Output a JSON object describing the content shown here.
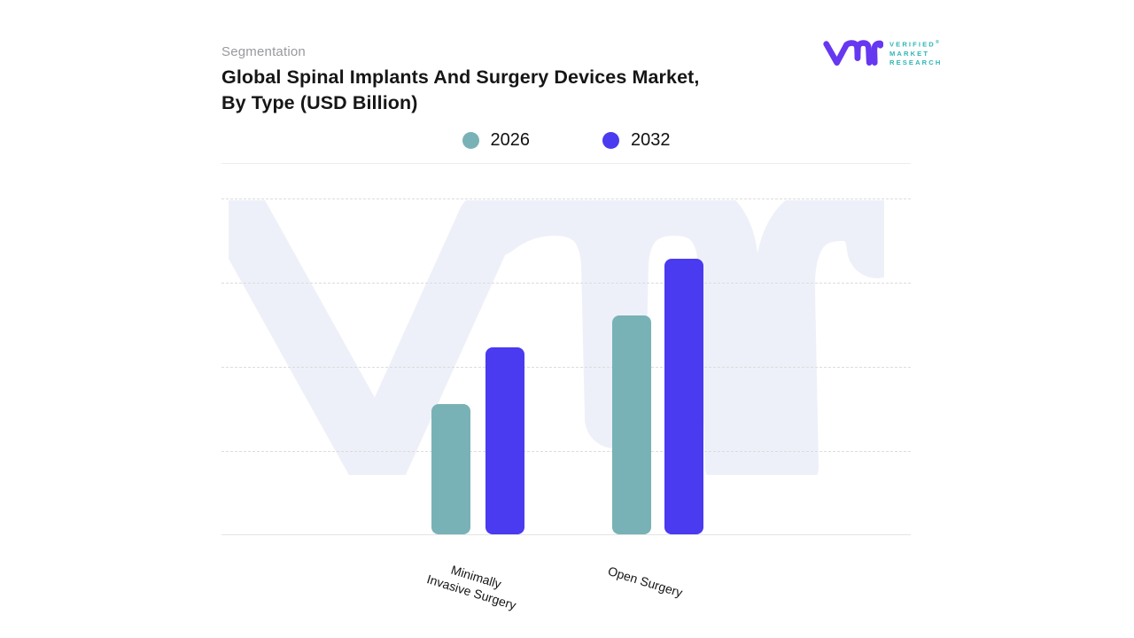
{
  "header": {
    "eyebrow": "Segmentation",
    "title": "Global Spinal Implants And Surgery Devices Market,\nBy Type (USD Billion)"
  },
  "logo": {
    "glyph": "vmr-monogram",
    "glyph_color": "#6638f0",
    "text_color": "#2fb5b4",
    "line1": "VERIFIED",
    "registered_mark": "®",
    "line2": "MARKET",
    "line3": "RESEARCH"
  },
  "legend": {
    "items": [
      {
        "label": "2026",
        "color": "#78b2b6"
      },
      {
        "label": "2032",
        "color": "#4a3af0"
      }
    ]
  },
  "chart_data": {
    "type": "bar",
    "title": "Global Spinal Implants And Surgery Devices Market, By Type (USD Billion)",
    "ylabel": "USD Billion",
    "xlabel": "",
    "categories": [
      "Minimally\nInvasive Surgery",
      "Open Surgery"
    ],
    "series": [
      {
        "name": "2026",
        "color": "#78b2b6",
        "values": [
          1.55,
          2.6
        ]
      },
      {
        "name": "2032",
        "color": "#4a3af0",
        "values": [
          2.22,
          3.27
        ]
      }
    ],
    "ylim": [
      0,
      4
    ],
    "y_axis_tick_labels_visible": false,
    "grid": "horizontal-dashed",
    "legend_position": "top-center",
    "bar_corner_radius": 8,
    "pixels_per_unit": 95
  },
  "watermark": {
    "name": "vmr-watermark",
    "color": "#eef0f9"
  }
}
